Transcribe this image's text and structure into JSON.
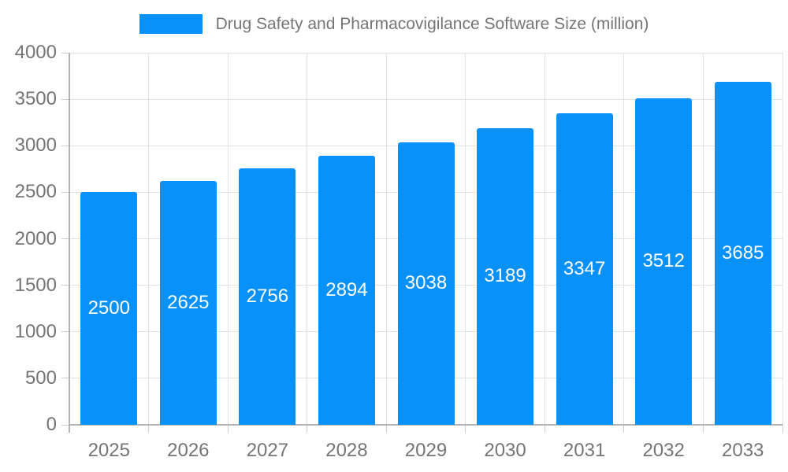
{
  "chart_data": {
    "type": "bar",
    "title": "Drug Safety and Pharmacovigilance Software Size (million)",
    "categories": [
      "2025",
      "2026",
      "2027",
      "2028",
      "2029",
      "2030",
      "2031",
      "2032",
      "2033"
    ],
    "values": [
      2500,
      2625,
      2756,
      2894,
      3038,
      3189,
      3347,
      3512,
      3685
    ],
    "xlabel": "",
    "ylabel": "",
    "ylim": [
      0,
      4000
    ],
    "yticks": [
      0,
      500,
      1000,
      1500,
      2000,
      2500,
      3000,
      3500,
      4000
    ],
    "grid": true,
    "legend_position": "top",
    "value_label_position": "inside-center"
  },
  "legend": {
    "label": "Drug Safety and Pharmacovigilance Software Size (million)"
  },
  "style": {
    "bar_color": "#0991fa",
    "value_label_color": "#ffffff",
    "text_color": "#757575",
    "gridline_color": "#e2e2e2",
    "tick_color": "#cccccc",
    "axis_color": "#b3b3b3",
    "background_color": "#ffffff"
  }
}
